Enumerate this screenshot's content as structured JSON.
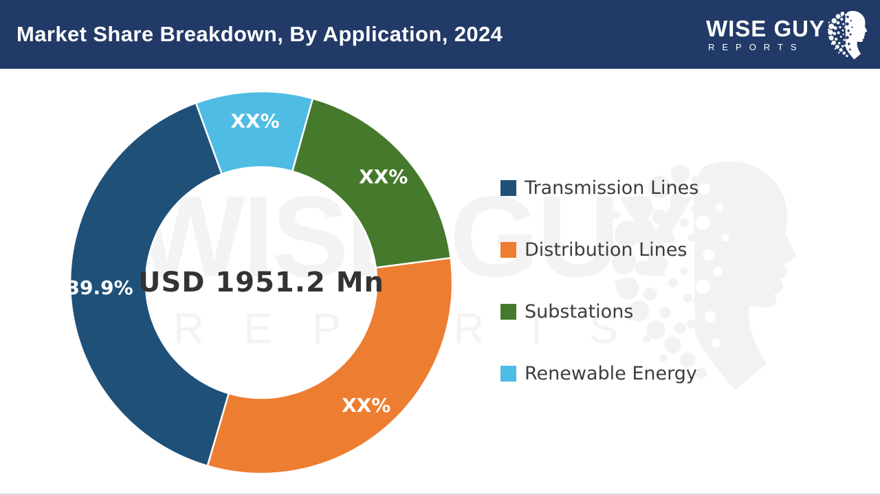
{
  "header": {
    "title": "Market Share Breakdown, By Application, 2024",
    "bg_color": "#223A67"
  },
  "brand": {
    "wordmark": "WISE GUY",
    "subtext": "REPORTS"
  },
  "chart_data": {
    "type": "pie",
    "donut": true,
    "title": "Market Share Breakdown, By Application, 2024",
    "center_label": "USD 1951.2 Mn",
    "legend_position": "right",
    "start_angle_deg": 340,
    "draw_order": [
      3,
      2,
      1,
      0
    ],
    "segments": [
      {
        "name": "Transmission Lines",
        "label": "39.9%",
        "value_pct": 39.9,
        "color": "#1F5078"
      },
      {
        "name": "Distribution Lines",
        "label": "XX%",
        "value_pct": 31.6,
        "color": "#ED7D31"
      },
      {
        "name": "Substations",
        "label": "XX%",
        "value_pct": 18.6,
        "color": "#45792B"
      },
      {
        "name": "Renewable Energy",
        "label": "XX%",
        "value_pct": 9.9,
        "color": "#4FBCE4"
      }
    ]
  }
}
